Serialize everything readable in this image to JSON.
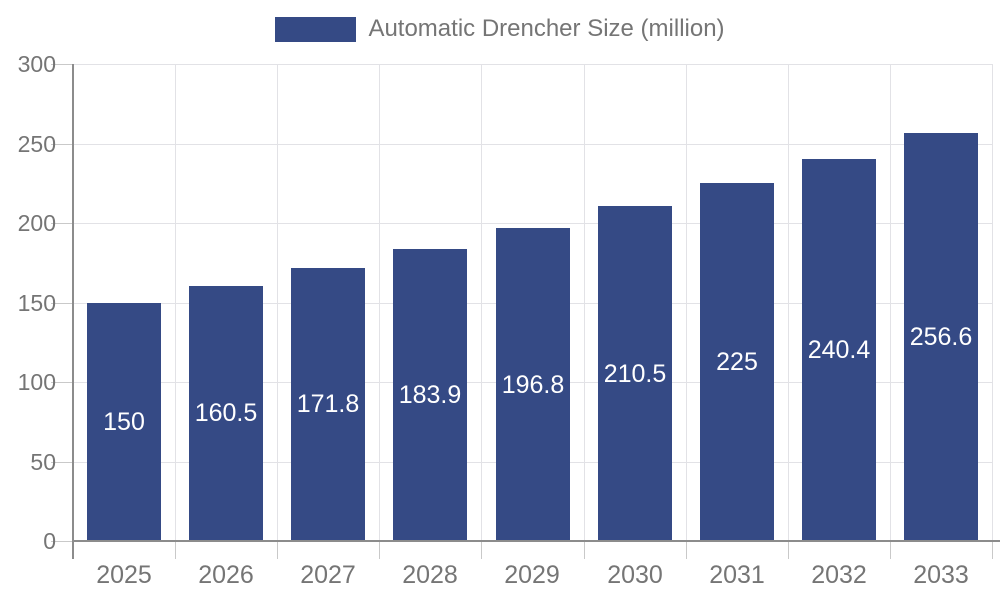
{
  "legend": {
    "label": "Automatic Drencher Size (million)"
  },
  "chart_data": {
    "type": "bar",
    "title": "",
    "xlabel": "",
    "ylabel": "",
    "categories": [
      "2025",
      "2026",
      "2027",
      "2028",
      "2029",
      "2030",
      "2031",
      "2032",
      "2033"
    ],
    "values": [
      150,
      160.5,
      171.8,
      183.9,
      196.8,
      210.5,
      225,
      240.4,
      256.6
    ],
    "value_labels": [
      "150",
      "160.5",
      "171.8",
      "183.9",
      "196.8",
      "210.5",
      "225",
      "240.4",
      "256.6"
    ],
    "series_name": "Automatic Drencher Size (million)",
    "ylim": [
      0,
      300
    ],
    "yticks": [
      0,
      50,
      100,
      150,
      200,
      250,
      300
    ],
    "grid": true,
    "legend_position": "top-center",
    "colors": {
      "bar": "#354A85",
      "bar_label_text": "#ffffff",
      "axis_line": "#8C8C8C",
      "gridline": "#E2E2E6",
      "tick": "#C9C9C9",
      "axis_text": "#757575",
      "legend_text": "#757575",
      "background": "#ffffff"
    }
  }
}
